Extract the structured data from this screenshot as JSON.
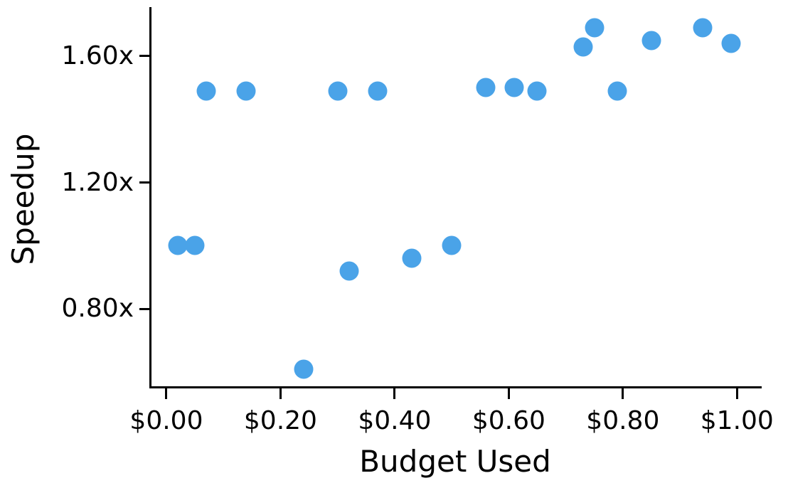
{
  "chart_data": {
    "type": "scatter",
    "title": "",
    "xlabel": "Budget Used",
    "ylabel": "Speedup",
    "grid": false,
    "legend_position": "none",
    "marker_color": "#4aa3e8",
    "xlim": [
      -0.028,
      1.042
    ],
    "ylim": [
      0.555,
      1.753
    ],
    "x_ticks": {
      "values": [
        0.0,
        0.2,
        0.4,
        0.6,
        0.8,
        1.0
      ],
      "labels": [
        "$0.00",
        "$0.20",
        "$0.40",
        "$0.60",
        "$0.80",
        "$1.00"
      ]
    },
    "y_ticks": {
      "values": [
        0.8,
        1.2,
        1.6
      ],
      "labels": [
        "0.80x",
        "1.20x",
        "1.60x"
      ]
    },
    "points": [
      [
        0.02,
        1.0
      ],
      [
        0.05,
        1.0
      ],
      [
        0.07,
        1.49
      ],
      [
        0.14,
        1.49
      ],
      [
        0.24,
        0.61
      ],
      [
        0.3,
        1.49
      ],
      [
        0.32,
        0.92
      ],
      [
        0.37,
        1.49
      ],
      [
        0.43,
        0.96
      ],
      [
        0.5,
        1.0
      ],
      [
        0.56,
        1.5
      ],
      [
        0.61,
        1.5
      ],
      [
        0.65,
        1.49
      ],
      [
        0.73,
        1.63
      ],
      [
        0.75,
        1.69
      ],
      [
        0.79,
        1.49
      ],
      [
        0.85,
        1.65
      ],
      [
        0.94,
        1.69
      ],
      [
        0.99,
        1.64
      ]
    ]
  }
}
